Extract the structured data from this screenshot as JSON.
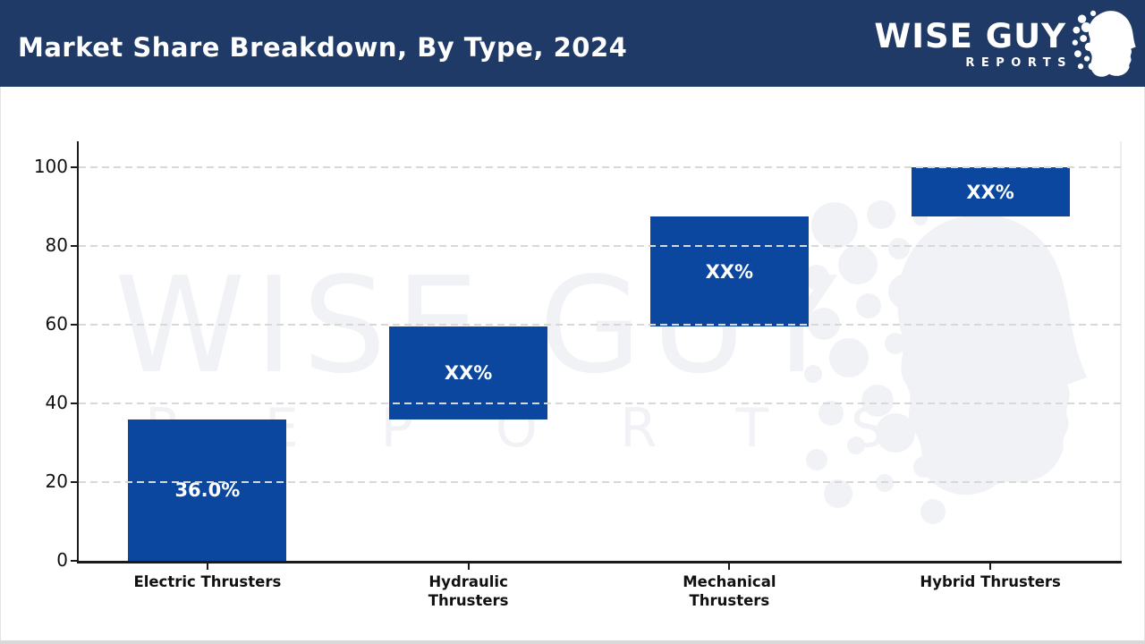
{
  "colors": {
    "header_bg": "#1f3a66",
    "bar_fill": "#0b479f",
    "value_label": "#ffffff",
    "gridline": "#d8d8d8",
    "axis_text": "#111111",
    "watermark": "#f1f2f5",
    "footer_strip": "#d9d9d9"
  },
  "header": {
    "title": "Market Share Breakdown, By Type, 2024",
    "logo": {
      "line1": "WISE GUY",
      "line2": "REPORTS"
    }
  },
  "watermark": {
    "line1": "WISE GUY",
    "line2": "REPORTS"
  },
  "chart_data": {
    "type": "bar",
    "subtype": "floating-waterfall",
    "title": "Market Share Breakdown, By Type, 2024",
    "categories": [
      "Electric Thrusters",
      "Hydraulic Thrusters",
      "Mechanical Thrusters",
      "Hybrid Thrusters"
    ],
    "category_label_lines": [
      [
        "Electric Thrusters"
      ],
      [
        "Hydraulic",
        "Thrusters"
      ],
      [
        "Mechanical",
        "Thrusters"
      ],
      [
        "Hybrid Thrusters"
      ]
    ],
    "segments": [
      {
        "category": "Electric Thrusters",
        "start": 0,
        "end": 36,
        "label": "36.0%"
      },
      {
        "category": "Hydraulic Thrusters",
        "start": 36,
        "end": 59.5,
        "label": "XX%"
      },
      {
        "category": "Mechanical Thrusters",
        "start": 59.5,
        "end": 87.5,
        "label": "XX%"
      },
      {
        "category": "Hybrid Thrusters",
        "start": 87.5,
        "end": 100,
        "label": "XX%"
      }
    ],
    "xlabel": "",
    "ylabel": "",
    "ylim": [
      0,
      100
    ],
    "yticks": [
      0,
      20,
      40,
      60,
      80,
      100
    ],
    "grid": "horizontal-dashed",
    "legend": false
  }
}
